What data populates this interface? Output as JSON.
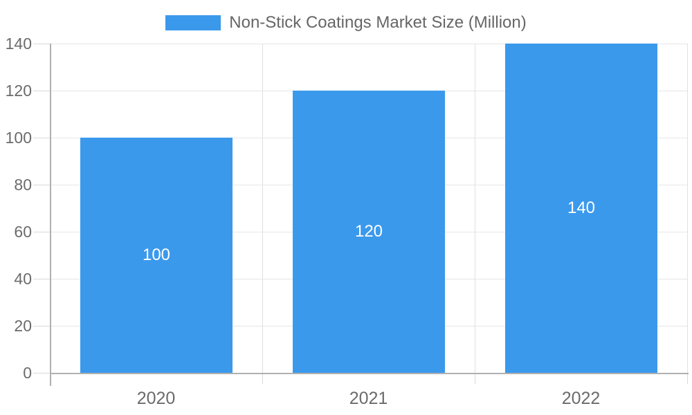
{
  "chart_data": {
    "type": "bar",
    "title": "Non-Stick Coatings Market Size (Million)",
    "legend": {
      "position": "top",
      "label": "Non-Stick Coatings Market Size (Million)"
    },
    "categories": [
      "2020",
      "2021",
      "2022"
    ],
    "values": [
      100,
      120,
      140
    ],
    "data_labels": [
      "100",
      "120",
      "140"
    ],
    "xlabel": "",
    "ylabel": "",
    "ylim": [
      0,
      140
    ],
    "yticks": [
      0,
      20,
      40,
      60,
      80,
      100,
      120,
      140
    ],
    "grid": true,
    "colors": {
      "bar": "#3B99EC",
      "bar_value_label": "#FFFFFF",
      "legend_text": "#666666",
      "tick_text": "#6B6B6B",
      "axis_line": "#B0B0B0",
      "gridline_h": "#E6E6E6",
      "gridline_v": "#E0E0E0",
      "tick_mark": "#D9D9D9",
      "background": "#FFFFFF"
    }
  }
}
